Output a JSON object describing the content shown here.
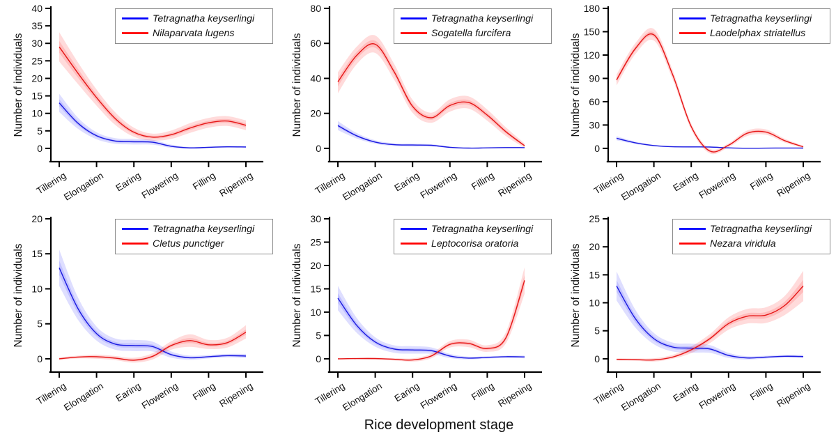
{
  "figure": {
    "ylabel": "Number of individuals",
    "xlabel": "Rice development stage",
    "categories": [
      "Tillering",
      "Elongation",
      "Earing",
      "Flowering",
      "Filling",
      "Ripening"
    ],
    "colors": {
      "blue_line": "#1a1ae0",
      "red_line": "#e51616",
      "legend_blue": "#0000ff",
      "legend_red": "#ff0000",
      "blue_band": "rgba(60,60,255,0.17)",
      "red_band": "rgba(255,40,40,0.17)",
      "axis": "#000000",
      "legend_border": "#8c8c8c"
    }
  },
  "chart_data": [
    {
      "type": "line",
      "position": "top-left",
      "categories": [
        "Tillering",
        "Elongation",
        "Earing",
        "Flowering",
        "Filling",
        "Ripening"
      ],
      "ylabel": "Number of individuals",
      "ylim": [
        -3.8,
        40
      ],
      "yticks": [
        0,
        5,
        10,
        15,
        20,
        25,
        30,
        35,
        40
      ],
      "legend_position": "upper right",
      "series": [
        {
          "name": "Tetragnatha keyserlingi",
          "color": "blue",
          "x": [
            0,
            0.5,
            1,
            1.5,
            2,
            2.5,
            3,
            3.5,
            4,
            4.5,
            5
          ],
          "mean": [
            13,
            7.2,
            3.6,
            2.1,
            1.9,
            1.75,
            0.6,
            0.15,
            0.3,
            0.45,
            0.4
          ],
          "lo": [
            10.4,
            5.6,
            2.6,
            1.3,
            1.1,
            1.05,
            0.15,
            -0.15,
            0.05,
            0.2,
            0.1
          ],
          "hi": [
            15.6,
            8.8,
            4.6,
            2.9,
            2.7,
            2.45,
            1.05,
            0.45,
            0.55,
            0.7,
            0.7
          ]
        },
        {
          "name": "Nilaparvata lugens",
          "color": "red",
          "x": [
            0,
            0.5,
            1,
            1.5,
            2,
            2.5,
            3,
            3.5,
            4,
            4.5,
            5
          ],
          "mean": [
            29,
            21.5,
            14.5,
            8.5,
            4.6,
            3.2,
            3.9,
            5.8,
            7.3,
            7.8,
            6.6
          ],
          "lo": [
            24.8,
            18.4,
            12.2,
            6.7,
            3.3,
            2.2,
            2.7,
            4.4,
            5.9,
            6.4,
            5.2
          ],
          "hi": [
            33.2,
            24.6,
            16.8,
            10.3,
            5.9,
            4.2,
            5.1,
            7.2,
            8.7,
            9.2,
            8.0
          ]
        }
      ]
    },
    {
      "type": "line",
      "position": "top-middle",
      "categories": [
        "Tillering",
        "Elongation",
        "Earing",
        "Flowering",
        "Filling",
        "Ripening"
      ],
      "ylabel": "Number of individuals",
      "ylim": [
        -7.6,
        80
      ],
      "yticks": [
        0,
        20,
        40,
        60,
        80
      ],
      "legend_position": "upper right",
      "series": [
        {
          "name": "Tetragnatha keyserlingi",
          "color": "blue",
          "x": [
            0,
            0.5,
            1,
            1.5,
            2,
            2.5,
            3,
            3.5,
            4,
            4.5,
            5
          ],
          "mean": [
            13,
            7.2,
            3.6,
            2.1,
            1.9,
            1.75,
            0.6,
            0.15,
            0.3,
            0.45,
            0.4
          ],
          "lo": [
            10.4,
            5.6,
            2.6,
            1.3,
            1.1,
            1.05,
            0.15,
            -0.15,
            0.05,
            0.2,
            0.1
          ],
          "hi": [
            15.6,
            8.8,
            4.6,
            2.9,
            2.7,
            2.45,
            1.05,
            0.45,
            0.55,
            0.7,
            0.7
          ]
        },
        {
          "name": "Sogatella furcifera",
          "color": "red",
          "x": [
            0,
            0.5,
            1,
            1.5,
            2,
            2.5,
            3,
            3.5,
            4,
            4.5,
            5
          ],
          "mean": [
            38,
            53,
            59.5,
            44,
            24,
            17.5,
            24.5,
            26.2,
            19,
            9.5,
            1.5
          ],
          "lo": [
            31.5,
            48,
            54.5,
            39.5,
            20.3,
            14.6,
            21,
            22.7,
            15.8,
            7,
            0.3
          ],
          "hi": [
            43.5,
            58,
            64.5,
            48.5,
            27.7,
            20.4,
            28,
            29.7,
            22.2,
            12,
            2.8
          ]
        }
      ]
    },
    {
      "type": "line",
      "position": "top-right",
      "categories": [
        "Tillering",
        "Elongation",
        "Earing",
        "Flowering",
        "Filling",
        "Ripening"
      ],
      "ylabel": "Number of individuals",
      "ylim": [
        -17.1,
        180
      ],
      "yticks": [
        0,
        30,
        60,
        90,
        120,
        150,
        180
      ],
      "legend_position": "upper right",
      "series": [
        {
          "name": "Tetragnatha keyserlingi",
          "color": "blue",
          "x": [
            0,
            0.5,
            1,
            1.5,
            2,
            2.5,
            3,
            3.5,
            4,
            4.5,
            5
          ],
          "mean": [
            13,
            7.2,
            3.6,
            2.1,
            1.9,
            1.75,
            0.6,
            0.15,
            0.3,
            0.45,
            0.4
          ],
          "lo": [
            10.4,
            5.6,
            2.6,
            1.3,
            1.1,
            1.05,
            0.15,
            -0.15,
            0.05,
            0.2,
            0.1
          ],
          "hi": [
            15.6,
            8.8,
            4.6,
            2.9,
            2.7,
            2.45,
            1.05,
            0.45,
            0.55,
            0.7,
            0.7
          ]
        },
        {
          "name": "Laodelphax striatellus",
          "color": "red",
          "x": [
            0,
            0.5,
            1,
            1.5,
            2,
            2.5,
            3,
            3.5,
            4,
            4.5,
            5
          ],
          "mean": [
            88,
            128,
            146,
            95,
            28,
            -3.5,
            4,
            19.5,
            21,
            10,
            2
          ],
          "lo": [
            81,
            121,
            138.5,
            89,
            24,
            -6.5,
            1.5,
            16,
            17.5,
            7.5,
            0.5
          ],
          "hi": [
            95,
            135,
            153.5,
            101,
            32,
            -0.5,
            6.5,
            23,
            24.5,
            12.5,
            3.5
          ]
        }
      ]
    },
    {
      "type": "line",
      "position": "bottom-left",
      "categories": [
        "Tillering",
        "Elongation",
        "Earing",
        "Flowering",
        "Filling",
        "Ripening"
      ],
      "ylabel": "Number of individuals",
      "ylim": [
        -1.9,
        20
      ],
      "yticks": [
        0,
        5,
        10,
        15,
        20
      ],
      "legend_position": "upper right",
      "series": [
        {
          "name": "Tetragnatha keyserlingi",
          "color": "blue",
          "x": [
            0,
            0.5,
            1,
            1.5,
            2,
            2.5,
            3,
            3.5,
            4,
            4.5,
            5
          ],
          "mean": [
            13,
            7.2,
            3.6,
            2.1,
            1.9,
            1.75,
            0.6,
            0.15,
            0.3,
            0.45,
            0.4
          ],
          "lo": [
            10.4,
            5.6,
            2.6,
            1.3,
            1.1,
            1.05,
            0.15,
            -0.15,
            0.05,
            0.2,
            0.1
          ],
          "hi": [
            15.6,
            8.8,
            4.6,
            2.9,
            2.7,
            2.45,
            1.05,
            0.45,
            0.55,
            0.7,
            0.7
          ]
        },
        {
          "name": "Cletus punctiger",
          "color": "red",
          "x": [
            0,
            0.5,
            1,
            1.5,
            2,
            2.5,
            3,
            3.5,
            4,
            4.5,
            5
          ],
          "mean": [
            0,
            0.25,
            0.3,
            0.1,
            -0.2,
            0.35,
            1.9,
            2.6,
            2.0,
            2.3,
            3.8
          ],
          "lo": [
            -0.2,
            0.05,
            0.0,
            -0.2,
            -0.55,
            -0.1,
            1.3,
            1.7,
            1.4,
            1.6,
            2.9
          ],
          "hi": [
            0.2,
            0.45,
            0.6,
            0.4,
            0.15,
            0.8,
            2.5,
            3.5,
            2.7,
            3.0,
            4.8
          ]
        }
      ]
    },
    {
      "type": "line",
      "position": "bottom-middle",
      "categories": [
        "Tillering",
        "Elongation",
        "Earing",
        "Flowering",
        "Filling",
        "Ripening"
      ],
      "ylabel": "Number of individuals",
      "ylim": [
        -2.85,
        30
      ],
      "yticks": [
        0,
        5,
        10,
        15,
        20,
        25,
        30
      ],
      "legend_position": "upper right",
      "series": [
        {
          "name": "Tetragnatha keyserlingi",
          "color": "blue",
          "x": [
            0,
            0.5,
            1,
            1.5,
            2,
            2.5,
            3,
            3.5,
            4,
            4.5,
            5
          ],
          "mean": [
            13,
            7.2,
            3.6,
            2.1,
            1.9,
            1.75,
            0.6,
            0.15,
            0.3,
            0.45,
            0.4
          ],
          "lo": [
            10.4,
            5.6,
            2.6,
            1.3,
            1.1,
            1.05,
            0.15,
            -0.15,
            0.05,
            0.2,
            0.1
          ],
          "hi": [
            15.6,
            8.8,
            4.6,
            2.9,
            2.7,
            2.45,
            1.05,
            0.45,
            0.55,
            0.7,
            0.7
          ]
        },
        {
          "name": "Leptocorisa oratoria",
          "color": "red",
          "x": [
            0,
            0.5,
            1,
            1.5,
            2,
            2.5,
            3,
            3.5,
            4,
            4.5,
            5
          ],
          "mean": [
            0,
            0.05,
            0.05,
            -0.1,
            -0.25,
            0.6,
            3.1,
            3.3,
            2.2,
            4.5,
            16.8
          ],
          "lo": [
            -0.15,
            -0.1,
            -0.2,
            -0.35,
            -0.6,
            0.1,
            2.4,
            2.5,
            1.5,
            3.3,
            13.9
          ],
          "hi": [
            0.15,
            0.2,
            0.3,
            0.15,
            0.1,
            1.1,
            3.8,
            4.1,
            2.9,
            5.7,
            19.6
          ]
        }
      ]
    },
    {
      "type": "line",
      "position": "bottom-right",
      "categories": [
        "Tillering",
        "Elongation",
        "Earing",
        "Flowering",
        "Filling",
        "Ripening"
      ],
      "ylabel": "Number of individuals",
      "ylim": [
        -2.38,
        25
      ],
      "yticks": [
        0,
        5,
        10,
        15,
        20,
        25
      ],
      "legend_position": "upper right",
      "series": [
        {
          "name": "Tetragnatha keyserlingi",
          "color": "blue",
          "x": [
            0,
            0.5,
            1,
            1.5,
            2,
            2.5,
            3,
            3.5,
            4,
            4.5,
            5
          ],
          "mean": [
            13,
            7.2,
            3.6,
            2.1,
            1.9,
            1.75,
            0.6,
            0.15,
            0.3,
            0.45,
            0.4
          ],
          "lo": [
            10.4,
            5.6,
            2.6,
            1.3,
            1.1,
            1.05,
            0.15,
            -0.15,
            0.05,
            0.2,
            0.1
          ],
          "hi": [
            15.6,
            8.8,
            4.6,
            2.9,
            2.7,
            2.45,
            1.05,
            0.45,
            0.55,
            0.7,
            0.7
          ]
        },
        {
          "name": "Nezara viridula",
          "color": "red",
          "x": [
            0,
            0.5,
            1,
            1.5,
            2,
            2.5,
            3,
            3.5,
            4,
            4.5,
            5
          ],
          "mean": [
            -0.1,
            -0.15,
            -0.2,
            0.3,
            1.6,
            3.6,
            6.3,
            7.6,
            7.8,
            9.5,
            13
          ],
          "lo": [
            -0.3,
            -0.35,
            -0.5,
            0.0,
            1.0,
            2.8,
            5.2,
            6.3,
            6.4,
            7.8,
            10.3
          ],
          "hi": [
            0.1,
            0.05,
            0.1,
            0.7,
            2.2,
            4.4,
            7.4,
            8.9,
            9.2,
            11.2,
            15.7
          ]
        }
      ]
    }
  ]
}
